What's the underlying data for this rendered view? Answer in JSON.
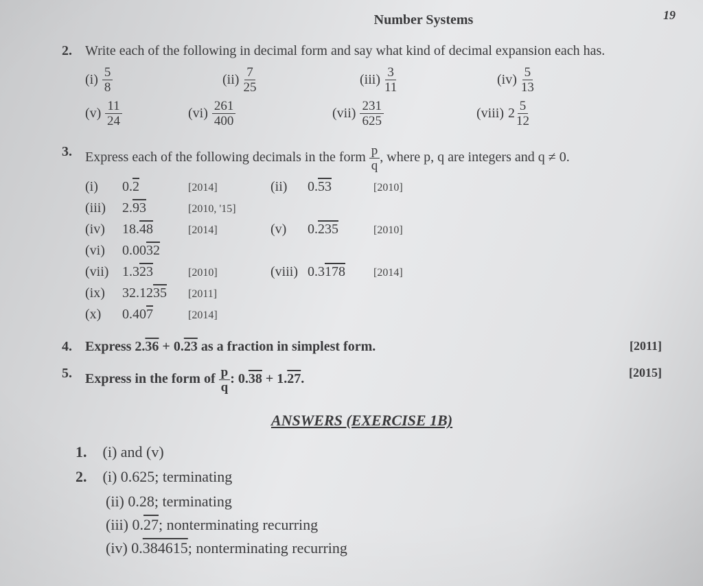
{
  "header": {
    "title": "Number Systems",
    "page_num": "19"
  },
  "q2": {
    "num": "2.",
    "text": "Write each of the following in decimal form and say what kind of decimal expansion each has.",
    "items": [
      {
        "label": "(i)",
        "type": "frac",
        "num": "5",
        "den": "8"
      },
      {
        "label": "(ii)",
        "type": "frac",
        "num": "7",
        "den": "25"
      },
      {
        "label": "(iii)",
        "type": "frac",
        "num": "3",
        "den": "11"
      },
      {
        "label": "(iv)",
        "type": "frac",
        "num": "5",
        "den": "13"
      },
      {
        "label": "(v)",
        "type": "frac",
        "num": "11",
        "den": "24"
      },
      {
        "label": "(vi)",
        "type": "frac",
        "num": "261",
        "den": "400"
      },
      {
        "label": "(vii)",
        "type": "frac",
        "num": "231",
        "den": "625"
      },
      {
        "label": "(viii)",
        "type": "mixed",
        "whole": "2",
        "num": "5",
        "den": "12"
      }
    ]
  },
  "q3": {
    "num": "3.",
    "text_a": "Express each of the following decimals in the form ",
    "text_b": ", where p, q are integers and q ≠ 0.",
    "frac": {
      "num": "p",
      "den": "q"
    },
    "items": [
      {
        "label": "(i)",
        "pre": "0.",
        "rep": "2",
        "yr": "[2014]"
      },
      {
        "label": "(ii)",
        "pre": "0.",
        "rep": "53",
        "yr": "[2010]"
      },
      {
        "label": "(iii)",
        "pre": "2.",
        "rep": "93",
        "yr": "[2010, '15]"
      },
      {
        "label": "(iv)",
        "pre": "18.",
        "rep": "48",
        "yr": "[2014]"
      },
      {
        "label": "(v)",
        "pre": "0.",
        "rep": "235",
        "yr": "[2010]"
      },
      {
        "label": "(vi)",
        "pre": "0.00",
        "rep": "32",
        "yr": ""
      },
      {
        "label": "(vii)",
        "pre": "1.3",
        "rep": "23",
        "yr": "[2010]"
      },
      {
        "label": "(viii)",
        "pre": "0.3",
        "rep": "178",
        "yr": "[2014]"
      },
      {
        "label": "(ix)",
        "pre": "32.12",
        "rep": "35",
        "yr": "[2011]"
      },
      {
        "label": "(x)",
        "pre": "0.40",
        "rep": "7",
        "yr": "[2014]"
      }
    ]
  },
  "q4": {
    "num": "4.",
    "text_a": "Express 2.",
    "rep_a": "36",
    "text_b": " + 0.",
    "rep_b": "23",
    "text_c": " as a fraction in simplest form.",
    "yr": "[2011]"
  },
  "q5": {
    "num": "5.",
    "text_a": "Express in the form of ",
    "frac": {
      "num": "p",
      "den": "q"
    },
    "text_b": ": 0.",
    "rep_a": "38",
    "text_c": " + 1.",
    "rep_b": "27",
    "text_d": ".",
    "yr": "[2015]"
  },
  "answers": {
    "title": "ANSWERS (EXERCISE 1B)",
    "a1": {
      "num": "1.",
      "text": "(i) and (v)"
    },
    "a2": {
      "num": "2.",
      "i": "(i) 0.625; terminating",
      "ii": "(ii) 0.28; terminating",
      "iii_a": "(iii) 0.",
      "iii_rep": "27",
      "iii_b": "; nonterminating recurring",
      "iv_a": "(iv) 0.",
      "iv_rep": "384615",
      "iv_b": "; nonterminating recurring"
    }
  }
}
